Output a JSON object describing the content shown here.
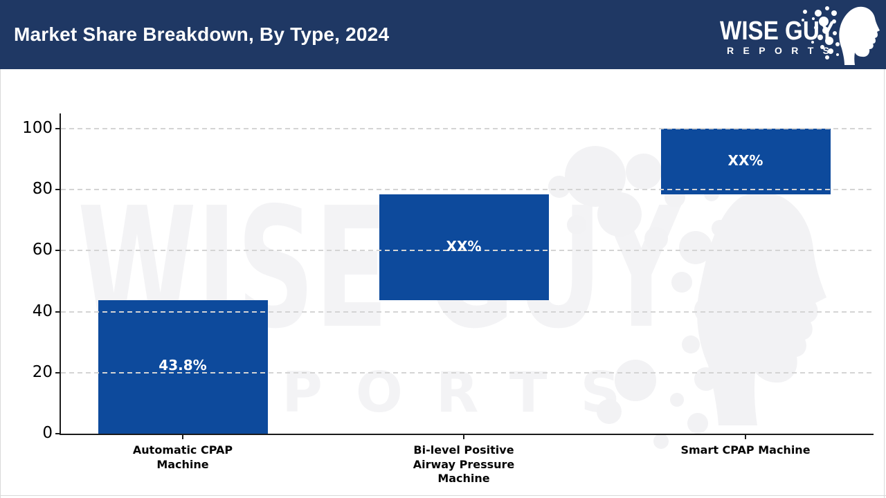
{
  "header": {
    "title": "Market Share Breakdown, By Type, 2024",
    "bg_color": "#1F3864",
    "logo": {
      "line1": "WISE GUY",
      "line2": "REPORTS"
    }
  },
  "watermark": {
    "line1": "WISE GUY",
    "line2": "REPORTS"
  },
  "chart_data": {
    "type": "bar",
    "subtype": "waterfall",
    "title": "Market Share Breakdown, By Type, 2024",
    "categories": [
      "Automatic CPAP Machine",
      "Bi-level Positive Airway Pressure Machine",
      "Smart CPAP Machine"
    ],
    "category_lines": [
      [
        "Automatic CPAP",
        "Machine"
      ],
      [
        "Bi-level Positive",
        "Airway Pressure",
        "Machine"
      ],
      [
        "Smart CPAP Machine"
      ]
    ],
    "segments": [
      {
        "start": 0,
        "end": 43.8,
        "label": "43.8%"
      },
      {
        "start": 43.8,
        "end": 78.4,
        "label": "XX%"
      },
      {
        "start": 78.4,
        "end": 100,
        "label": "XX%"
      }
    ],
    "ylim": [
      0,
      100
    ],
    "yticks": [
      0,
      20,
      40,
      60,
      80,
      100
    ],
    "xlabel": "",
    "ylabel": "",
    "grid": {
      "axis": "y",
      "style": "dashed",
      "color": "#d4d4d4",
      "over_bars": true
    },
    "legend": "none",
    "bar_color": "#0D4A9C",
    "bar_label_color": "#ffffff",
    "axis_color": "#1a1a1a"
  }
}
